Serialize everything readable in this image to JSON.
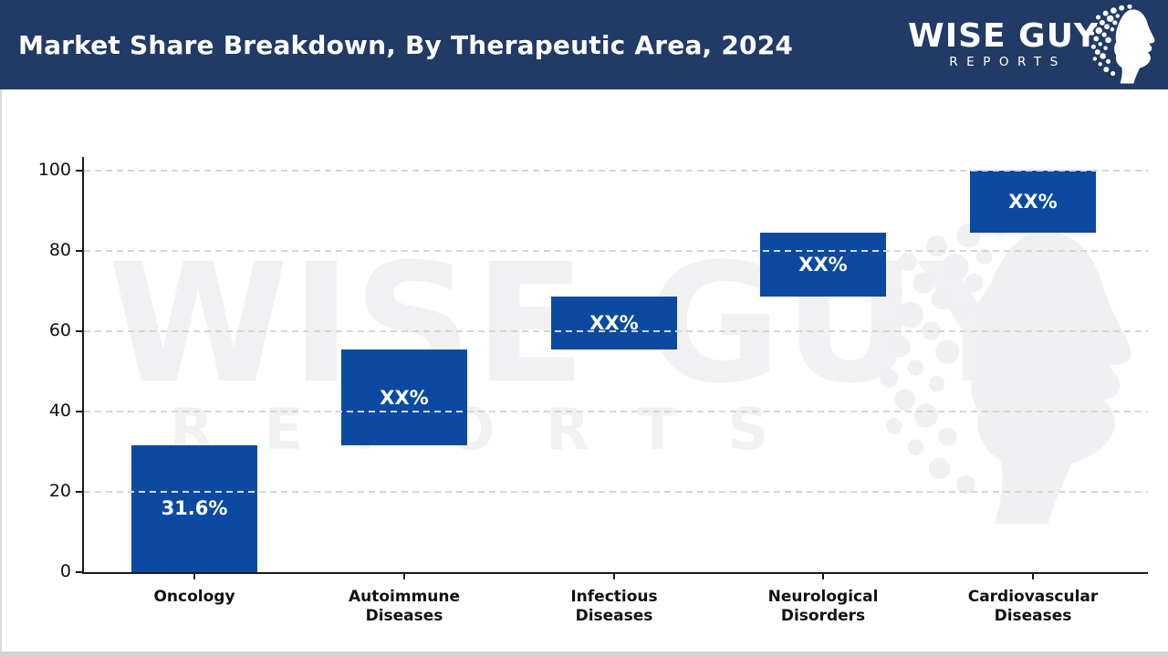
{
  "header": {
    "title": "Market Share Breakdown, By Therapeutic Area, 2024",
    "logo": {
      "line1": "WISE GUY",
      "line2": "REPORTS"
    }
  },
  "watermark": {
    "line1": "WISE GUY",
    "line2": "REPORTS"
  },
  "colors": {
    "header_bg": "#213a66",
    "bar": "#0b4aa0",
    "bar_label_text": "#ffffff",
    "title_text": "#ffffff",
    "grid_line": "#d6d6d6",
    "axis": "#1a1a1a",
    "watermark": "#f1f1f4"
  },
  "chart_data": {
    "type": "bar",
    "subtype": "waterfall",
    "title": "Market Share Breakdown, By Therapeutic Area, 2024",
    "categories": [
      "Oncology",
      "Autoimmune\nDiseases",
      "Infectious\nDiseases",
      "Neurological\nDisorders",
      "Cardiovascular\nDiseases"
    ],
    "segments": [
      {
        "category": "Oncology",
        "start": 0,
        "end": 31.6,
        "label": "31.6%"
      },
      {
        "category": "Autoimmune Diseases",
        "start": 31.6,
        "end": 55.4,
        "label": "XX%"
      },
      {
        "category": "Infectious Diseases",
        "start": 55.4,
        "end": 68.6,
        "label": "XX%"
      },
      {
        "category": "Neurological Disorders",
        "start": 68.6,
        "end": 84.5,
        "label": "XX%"
      },
      {
        "category": "Cardiovascular Diseases",
        "start": 84.5,
        "end": 100,
        "label": "XX%"
      }
    ],
    "yticks": [
      0,
      20,
      40,
      60,
      80,
      100
    ],
    "ylim": [
      0,
      100
    ],
    "xlabel": "",
    "ylabel": "",
    "grid": "dashed-horizontal",
    "legend": null
  }
}
